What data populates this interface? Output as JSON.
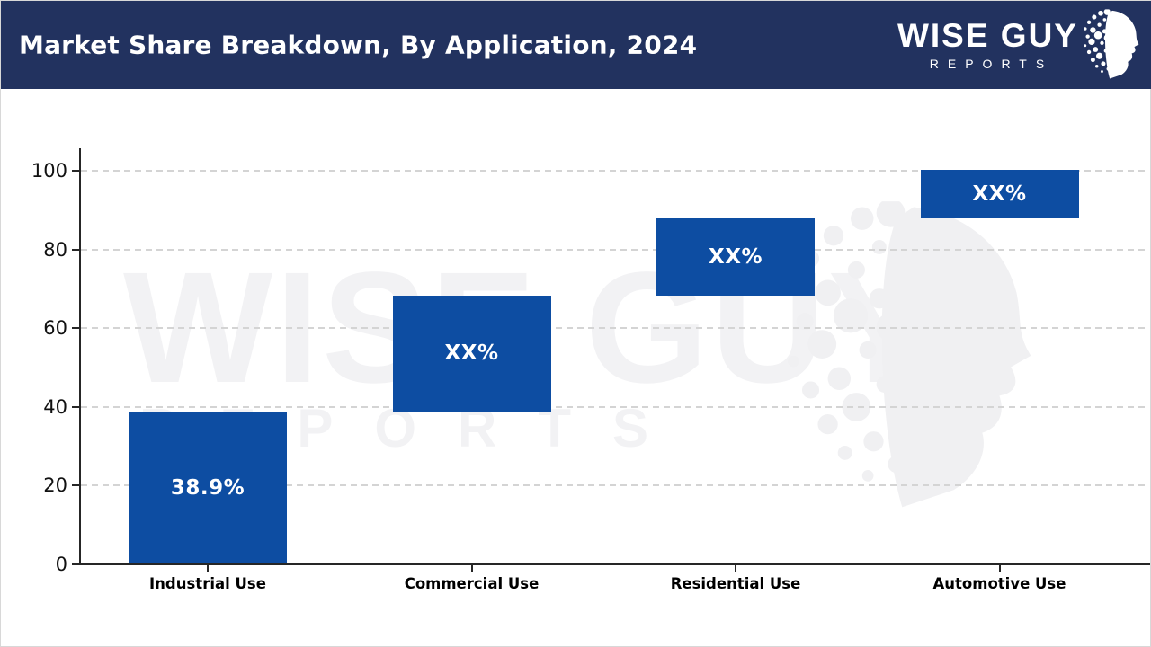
{
  "header": {
    "title": "Market Share Breakdown, By Application, 2024",
    "logo": {
      "line1": "WISE GUY",
      "line2": "REPORTS"
    }
  },
  "watermark": {
    "line1": "WISE GUY",
    "line2": "REPORTS"
  },
  "colors": {
    "header_bg": "#22325f",
    "bar": "#0d4da2",
    "grid": "#d4d4d4",
    "axis": "#262626",
    "watermark": "#f2f2f4"
  },
  "chart_data": {
    "type": "bar",
    "subtype": "waterfall",
    "title": "Market Share Breakdown, By Application, 2024",
    "categories": [
      "Industrial Use",
      "Commercial Use",
      "Residential Use",
      "Automotive Use"
    ],
    "segments": [
      {
        "category": "Industrial Use",
        "start": 0,
        "end": 38.9,
        "label": "38.9%"
      },
      {
        "category": "Commercial Use",
        "start": 38.9,
        "end": 68.3,
        "label": "XX%"
      },
      {
        "category": "Residential Use",
        "start": 68.3,
        "end": 88.0,
        "label": "XX%"
      },
      {
        "category": "Automotive Use",
        "start": 88.0,
        "end": 100.4,
        "label": "XX%"
      }
    ],
    "yticks": [
      0,
      20,
      40,
      60,
      80,
      100
    ],
    "ylim": [
      0,
      105.8
    ],
    "xlabel": "",
    "ylabel": "",
    "grid": "dashed-horizontal",
    "legend": "none"
  }
}
